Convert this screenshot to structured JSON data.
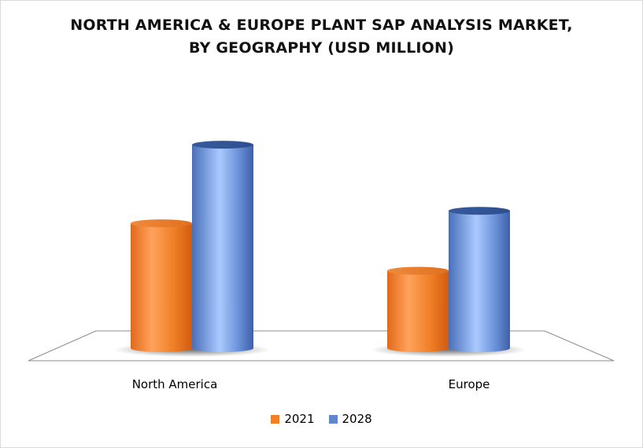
{
  "chart_data": {
    "type": "bar",
    "title_lines": [
      "NORTH AMERICA & EUROPE PLANT SAP ANALYSIS MARKET,",
      "BY GEOGRAPHY (USD MILLION)"
    ],
    "categories": [
      "North America",
      "Europe"
    ],
    "series": [
      {
        "name": "2021",
        "values": [
          100,
          62
        ],
        "color": "#f07f27"
      },
      {
        "name": "2028",
        "values": [
          163,
          110
        ],
        "color": "#5f86cf"
      }
    ],
    "ylim": [
      0,
      170
    ],
    "xlabel": "",
    "ylabel": "",
    "grid": false,
    "style": "3d-cylinder",
    "legend_position": "bottom"
  }
}
